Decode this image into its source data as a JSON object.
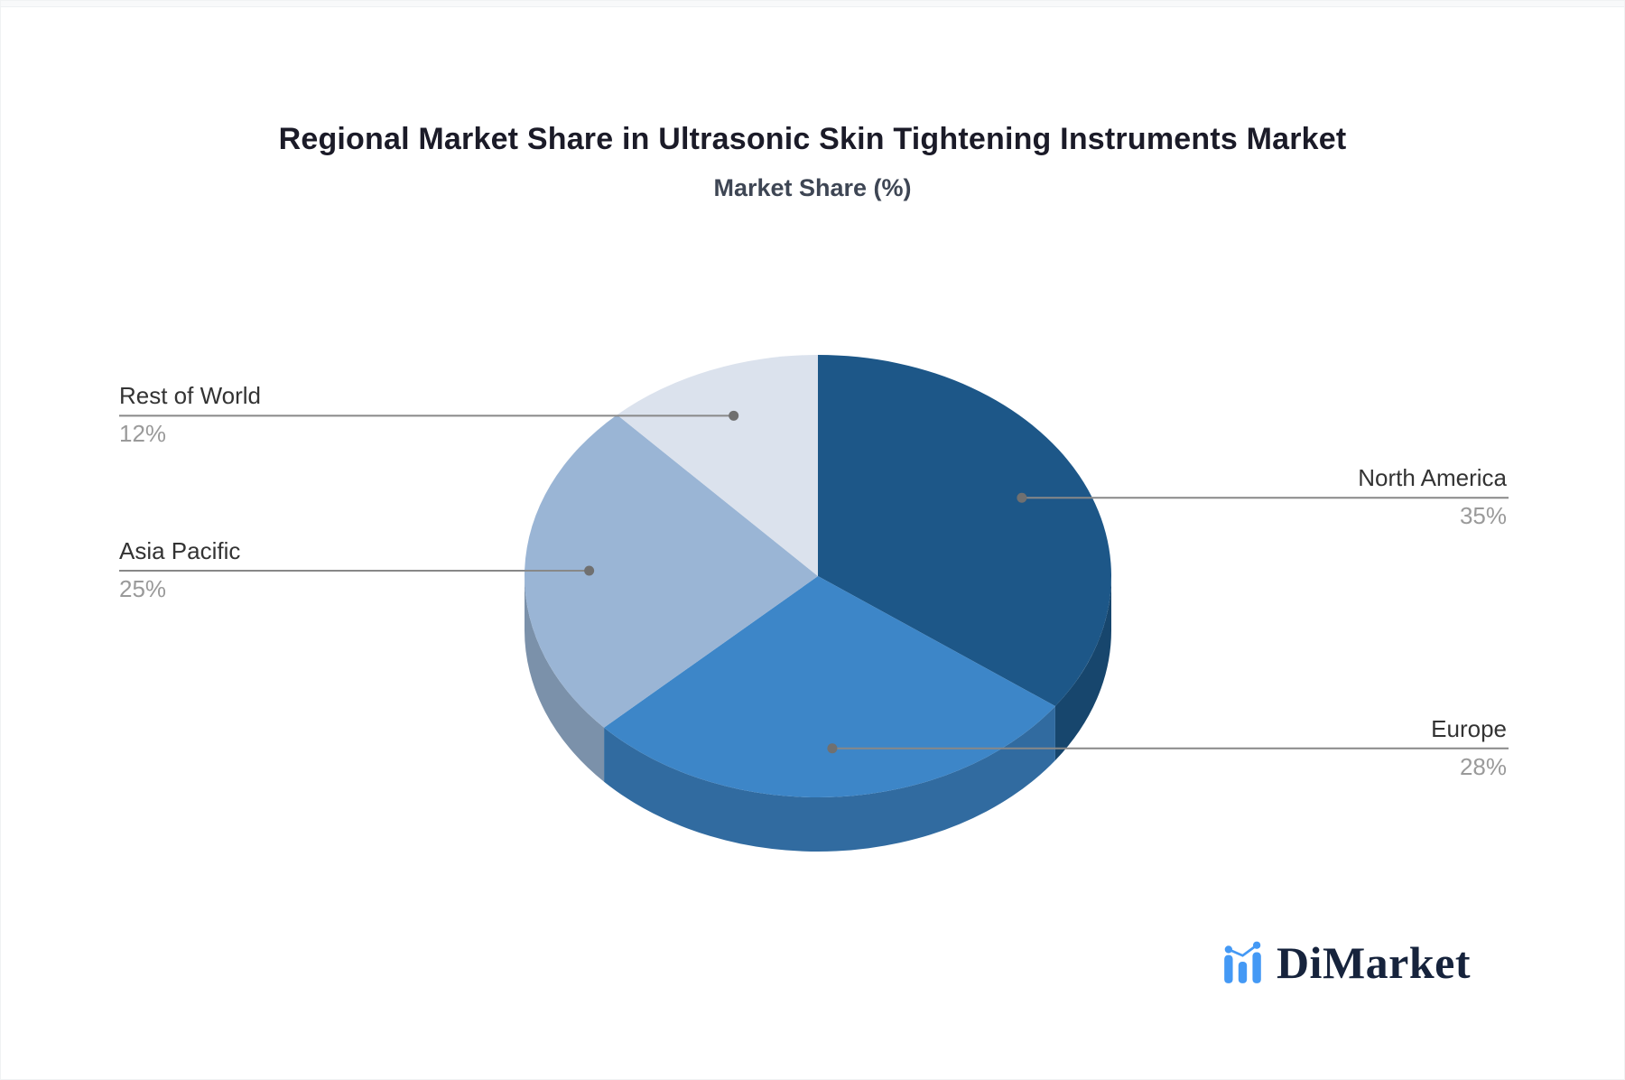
{
  "header": {
    "title": "Regional Market Share in Ultrasonic Skin Tightening Instruments Market",
    "subtitle": "Market Share (%)"
  },
  "chart_data": {
    "type": "pie",
    "variant": "3d",
    "title": "Regional Market Share in Ultrasonic Skin Tightening Instruments Market",
    "subtitle": "Market Share (%)",
    "unit": "%",
    "start_angle": "12-oclock-clockwise",
    "legend_position": "callout-labels",
    "slices": [
      {
        "label": "North America",
        "value": 35,
        "percent_label": "35%",
        "color": "#1d5788",
        "callout_side": "right"
      },
      {
        "label": "Europe",
        "value": 28,
        "percent_label": "28%",
        "color": "#3d86c8",
        "callout_side": "right"
      },
      {
        "label": "Asia Pacific",
        "value": 25,
        "percent_label": "25%",
        "color": "#9ab5d5",
        "callout_side": "left"
      },
      {
        "label": "Rest of World",
        "value": 12,
        "percent_label": "12%",
        "color": "#dbe2ed",
        "callout_side": "left"
      }
    ]
  },
  "style_colors": {
    "connector_line": "#888888",
    "connector_dot": "#707070",
    "label_name": "#333333",
    "label_percent": "#9a9a9a",
    "title": "#1b1b28",
    "subtitle": "#3e4654"
  },
  "branding": {
    "logo_text": "DiMarket",
    "logo_icon": "bar-line-chart-icon",
    "logo_text_color": "#16233c",
    "logo_icon_color": "#4499f5"
  }
}
